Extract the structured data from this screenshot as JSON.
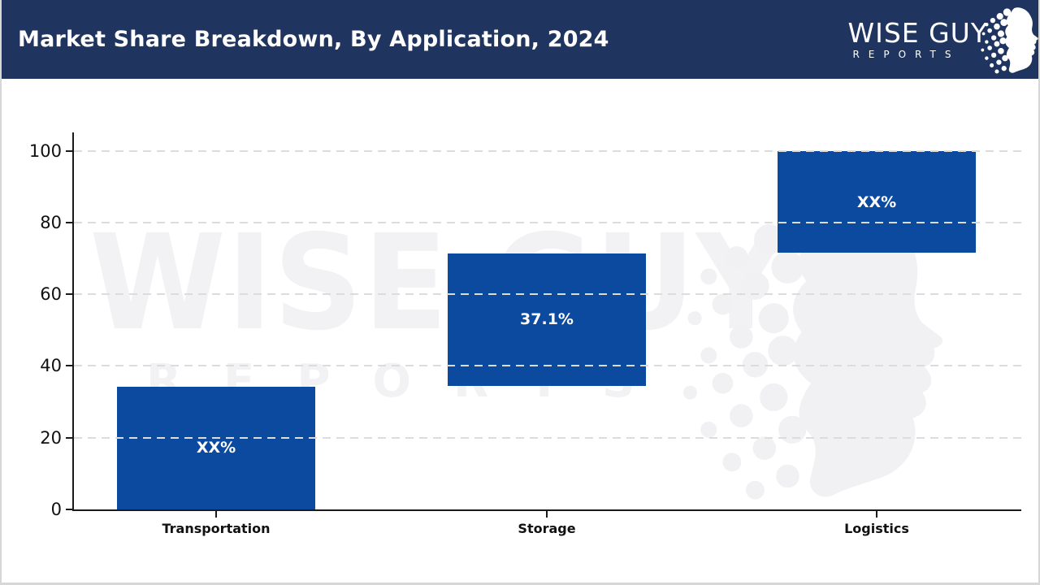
{
  "header": {
    "title": "Market Share Breakdown, By Application, 2024",
    "logo": {
      "wordmark": "WISE GUY",
      "subtext": "REPORTS"
    }
  },
  "watermark": {
    "wordmark": "WISE GUY",
    "subtext": "REPORTS"
  },
  "chart_data": {
    "type": "bar",
    "subtype": "waterfall",
    "title": "Market Share Breakdown, By Application, 2024",
    "categories": [
      "Transportation",
      "Storage",
      "Logistics"
    ],
    "series": [
      {
        "name": "Market Share (%)",
        "segments": [
          {
            "category": "Transportation",
            "start": 0,
            "end": 34.3,
            "label": "XX%"
          },
          {
            "category": "Storage",
            "start": 34.5,
            "end": 71.4,
            "label": "37.1%"
          },
          {
            "category": "Logistics",
            "start": 71.5,
            "end": 100,
            "label": "XX%"
          }
        ]
      }
    ],
    "yticks": [
      0,
      20,
      40,
      60,
      80,
      100
    ],
    "ytick_labels": [
      "0",
      "20",
      "40",
      "60",
      "80",
      "100"
    ],
    "ylim": [
      0,
      105
    ],
    "xlabel": "",
    "ylabel": "",
    "grid": "horizontal-dashed",
    "legend": "none",
    "bar_color": "#0b4a9f",
    "bar_label_color": "#ffffff"
  },
  "colors": {
    "header_bg": "#1f3560",
    "bar": "#0b4a9f",
    "grid": "#dcdcdc",
    "axis": "#1a1a1a",
    "watermark": "#f2f2f4",
    "page_border": "#d7d7d7"
  }
}
